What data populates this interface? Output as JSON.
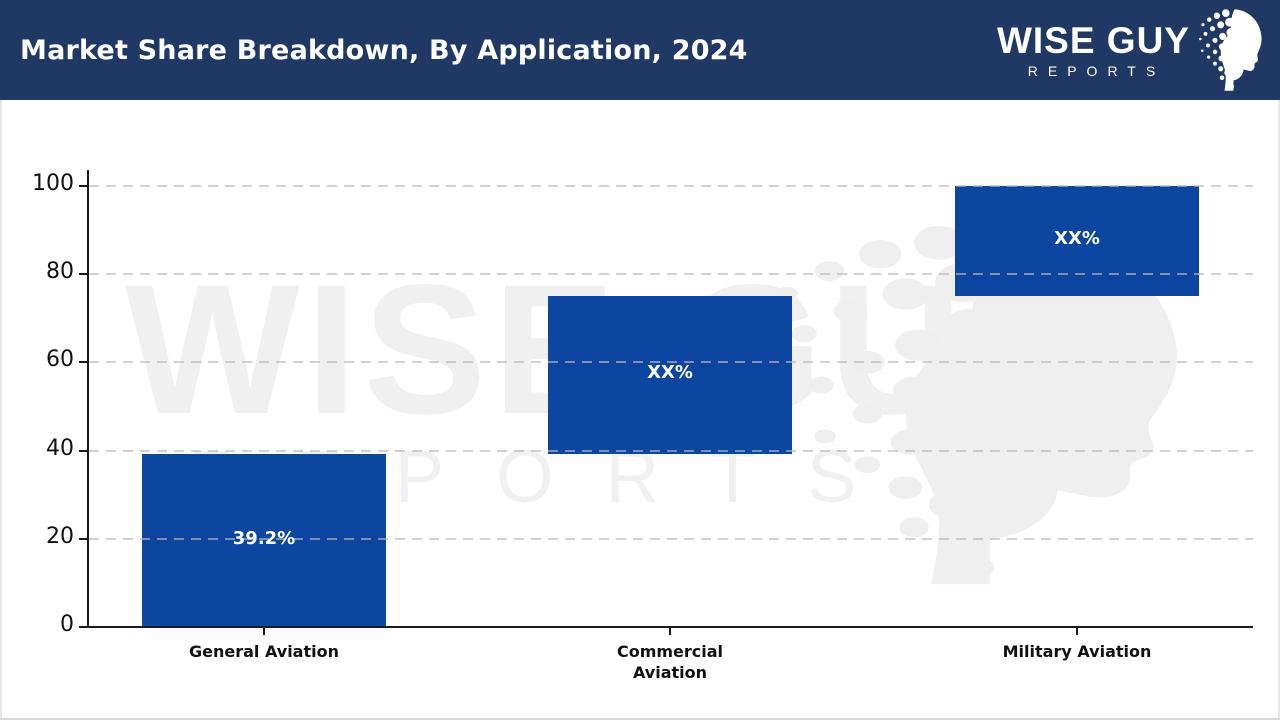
{
  "header": {
    "title": "Market Share Breakdown, By Application, 2024",
    "bg_color": "#1f3864",
    "logo": {
      "brand": "WISE GUY",
      "sub": "REPORTS"
    }
  },
  "watermark": {
    "brand": "WISE GUY",
    "sub": "REPORTS"
  },
  "chart_data": {
    "type": "bar",
    "variant": "floating-segment-breakdown",
    "title": "Market Share Breakdown, By Application, 2024",
    "categories": [
      "General Aviation",
      "Commercial Aviation",
      "Military Aviation"
    ],
    "category_label_lines": [
      [
        "General Aviation"
      ],
      [
        "Commercial",
        "Aviation"
      ],
      [
        "Military Aviation"
      ]
    ],
    "segments": [
      {
        "category": "General Aviation",
        "start": 0,
        "end": 39.2,
        "label": "39.2%"
      },
      {
        "category": "Commercial Aviation",
        "start": 39.2,
        "end": 75,
        "label": "XX%"
      },
      {
        "category": "Military Aviation",
        "start": 75,
        "end": 100,
        "label": "XX%"
      }
    ],
    "y_ticks": [
      0,
      20,
      40,
      60,
      80,
      100
    ],
    "ylim": [
      0,
      103.5
    ],
    "xlabel": "",
    "ylabel": "",
    "legend": "none",
    "grid": "horizontal-dashed",
    "bar_color": "#0c46a0",
    "label_color": "#ffffff",
    "axis_color": "#1a1a1a"
  }
}
